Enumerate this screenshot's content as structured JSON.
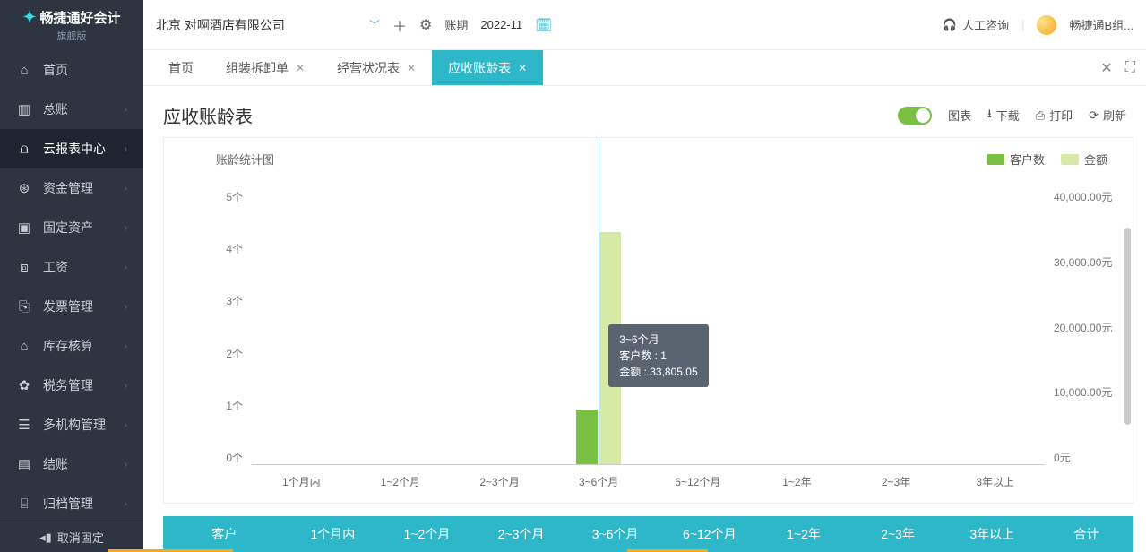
{
  "brand": {
    "name": "畅捷通好会计",
    "edition": "旗舰版"
  },
  "sidebar": {
    "items": [
      {
        "icon": "⌂",
        "label": "首页"
      },
      {
        "icon": "▥",
        "label": "总账"
      },
      {
        "icon": "⩍",
        "label": "云报表中心"
      },
      {
        "icon": "⊛",
        "label": "资金管理"
      },
      {
        "icon": "▣",
        "label": "固定资产"
      },
      {
        "icon": "⧈",
        "label": "工资"
      },
      {
        "icon": "⎘",
        "label": "发票管理"
      },
      {
        "icon": "⌂",
        "label": "库存核算"
      },
      {
        "icon": "✿",
        "label": "税务管理"
      },
      {
        "icon": "☰",
        "label": "多机构管理"
      },
      {
        "icon": "▤",
        "label": "结账"
      },
      {
        "icon": "⌸",
        "label": "归档管理"
      }
    ],
    "activeIndex": 2,
    "pin": "取消固定"
  },
  "topbar": {
    "company": "北京 对啊酒店有限公司",
    "periodLabel": "账期",
    "periodValue": "2022-11",
    "consult": "人工咨询",
    "username": "畅捷通B组..."
  },
  "tabs": {
    "items": [
      {
        "label": "首页",
        "closable": false
      },
      {
        "label": "组装拆卸单",
        "closable": true
      },
      {
        "label": "经营状况表",
        "closable": true
      },
      {
        "label": "应收账龄表",
        "closable": true
      }
    ],
    "activeIndex": 3
  },
  "page": {
    "title": "应收账龄表",
    "actions": {
      "chart": "图表",
      "download": "下载",
      "print": "打印",
      "refresh": "刷新"
    }
  },
  "chart": {
    "title": "账龄统计图",
    "legend": {
      "customers": "客户数",
      "amount": "金额"
    },
    "colors": {
      "customers": "#7ac043",
      "amount": "#d7e9a7",
      "tooltipBg": "#5a6470"
    },
    "yLeft": [
      "5个",
      "4个",
      "3个",
      "2个",
      "1个",
      "0个"
    ],
    "yRight": [
      "40,000.00元",
      "30,000.00元",
      "20,000.00元",
      "10,000.00元",
      "0元"
    ],
    "categories": [
      "1个月内",
      "1~2个月",
      "2~3个月",
      "3~6个月",
      "6~12个月",
      "1~2年",
      "2~3年",
      "3年以上"
    ],
    "series": {
      "customers": [
        0,
        0,
        0,
        1,
        0,
        0,
        0,
        0
      ],
      "amount": [
        0,
        0,
        0,
        33805.05,
        0,
        0,
        0,
        0
      ]
    },
    "yLeftMax": 5,
    "yRightMax": 40000,
    "tooltip": {
      "title": "3~6个月",
      "line1": "客户数 : 1",
      "line2": "金额 : 33,805.05"
    }
  },
  "table": {
    "headers": [
      "客户",
      "1个月内",
      "1~2个月",
      "2~3个月",
      "3~6个月",
      "6~12个月",
      "1~2年",
      "2~3年",
      "3年以上",
      "合计"
    ]
  }
}
